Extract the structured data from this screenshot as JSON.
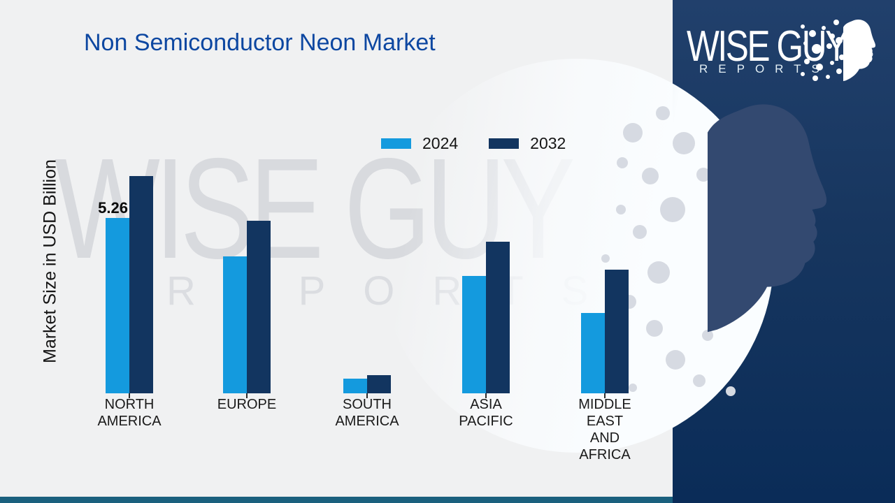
{
  "title": {
    "text": "Non Semiconductor Neon Market",
    "color": "#0d47a1"
  },
  "y_axis_label": "Market Size in USD Billion",
  "background_color": "#f0f1f2",
  "legend": [
    {
      "label": "2024",
      "color": "#149ade"
    },
    {
      "label": "2032",
      "color": "#123560"
    }
  ],
  "chart_data": {
    "type": "bar",
    "title": "Non Semiconductor Neon Market",
    "xlabel": "",
    "ylabel": "Market Size in USD Billion",
    "ylim": [
      0,
      7
    ],
    "grid": false,
    "legend_position": "top-center",
    "categories": [
      "NORTH AMERICA",
      "EUROPE",
      "SOUTH AMERICA",
      "ASIA PACIFIC",
      "MIDDLE EAST AND AFRICA"
    ],
    "category_label_lines": [
      [
        "NORTH",
        "AMERICA"
      ],
      [
        "EUROPE"
      ],
      [
        "SOUTH",
        "AMERICA"
      ],
      [
        "ASIA",
        "PACIFIC"
      ],
      [
        "MIDDLE",
        "EAST",
        "AND",
        "AFRICA"
      ]
    ],
    "series": [
      {
        "name": "2024",
        "color": "#149ade",
        "values": [
          5.26,
          4.11,
          0.44,
          3.52,
          2.41
        ]
      },
      {
        "name": "2032",
        "color": "#123560",
        "values": [
          6.52,
          5.17,
          0.55,
          4.55,
          3.71
        ]
      }
    ],
    "annotations": [
      {
        "series": "2024",
        "category": "NORTH AMERICA",
        "text": "5.26"
      }
    ]
  },
  "watermark": {
    "line1": "WISE GUY",
    "line2": "REPORTS"
  },
  "logo": {
    "line1": "WISE GUY",
    "line2": "REPORTS",
    "panel_color": "#17365f",
    "face_icon": "face-profile-icon"
  },
  "footer": {
    "bar_color": "#1a607e"
  }
}
